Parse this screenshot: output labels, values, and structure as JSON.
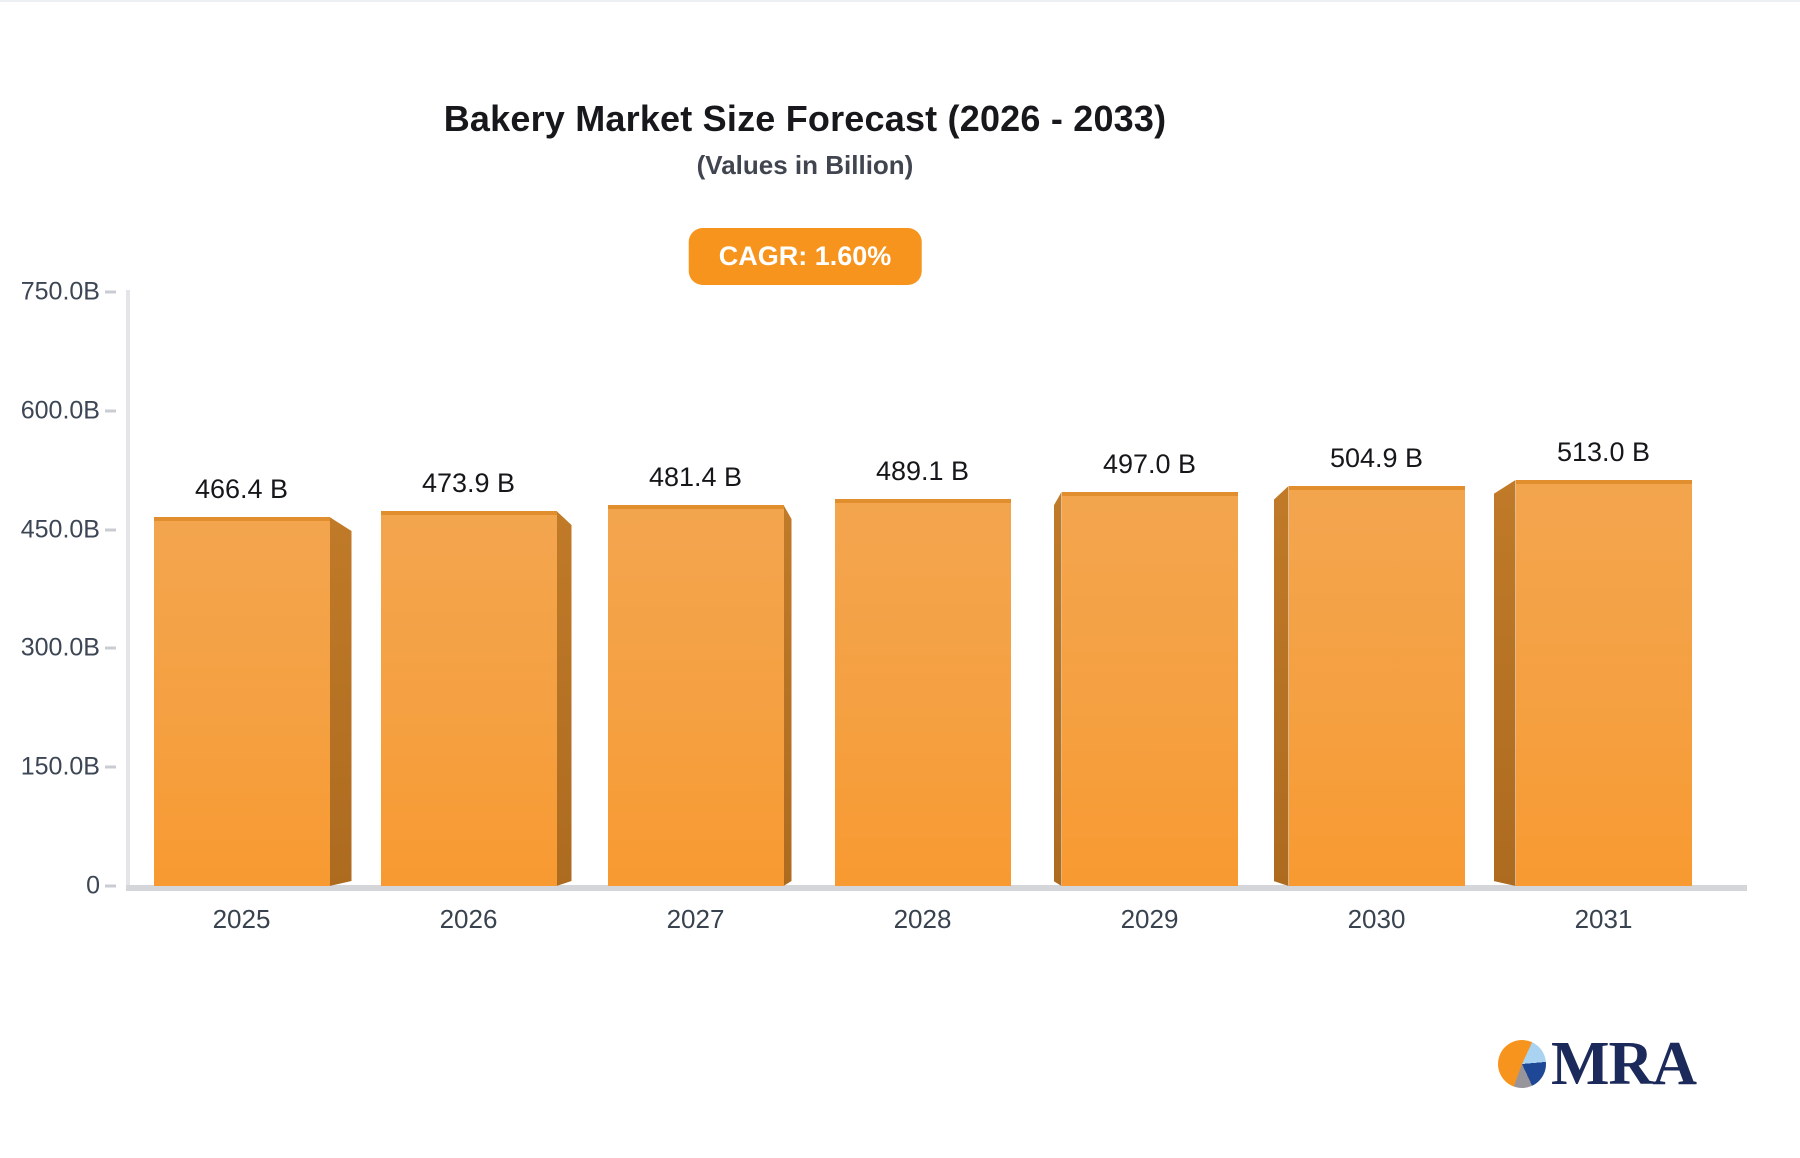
{
  "title": "Bakery Market Size Forecast (2026 - 2033)",
  "subtitle": "(Values in Billion)",
  "badge": {
    "label": "CAGR: 1.60%",
    "bg_color": "#F7941E",
    "text_color": "#FFFFFF"
  },
  "chart_data": {
    "type": "bar",
    "title": "Bakery Market Size Forecast (2026 - 2033)",
    "subtitle": "(Values in Billion)",
    "annotation": "CAGR: 1.60%",
    "categories": [
      "2025",
      "2026",
      "2027",
      "2028",
      "2029",
      "2030",
      "2031"
    ],
    "values": [
      466.4,
      473.9,
      481.4,
      489.1,
      497.0,
      504.9,
      513.0
    ],
    "value_labels": [
      "466.4 B",
      "473.9 B",
      "481.4 B",
      "489.1 B",
      "497.0 B",
      "504.9 B",
      "513.0 B"
    ],
    "y_ticks": [
      {
        "label": "750.0B",
        "value": 750
      },
      {
        "label": "600.0B",
        "value": 600
      },
      {
        "label": "450.0B",
        "value": 450
      },
      {
        "label": "300.0B",
        "value": 300
      },
      {
        "label": "150.0B",
        "value": 150
      },
      {
        "label": "0",
        "value": 0
      }
    ],
    "ylim": [
      0,
      750
    ],
    "xlabel": "",
    "ylabel": "",
    "grid": false,
    "legend": false,
    "bar_color_top": "#F3A54E",
    "bar_color_bottom": "#F89A31",
    "bar_side_color": "#B87225",
    "style": "3d-perspective-bars"
  },
  "logo": {
    "text": "MRA",
    "text_color": "#1B2A5A",
    "pie_colors": {
      "orange": "#F7941E",
      "light_blue": "#A9D3F0",
      "dark_blue": "#1E4796",
      "gray": "#97949B"
    }
  }
}
